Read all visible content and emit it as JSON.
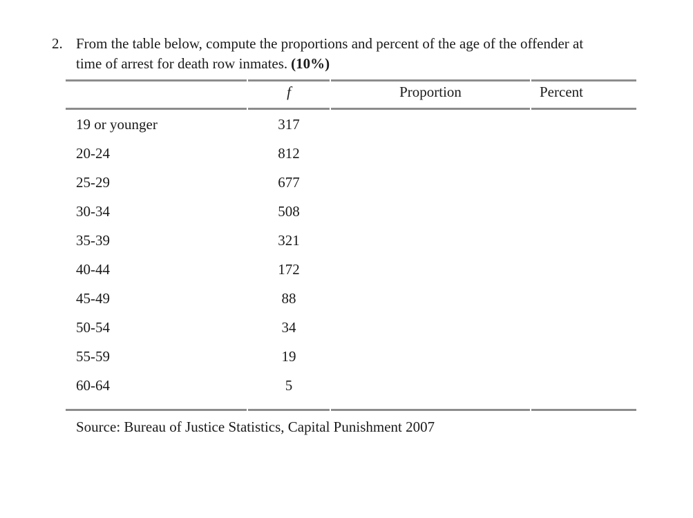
{
  "colors": {
    "background": "#ffffff",
    "text": "#1a1a1a",
    "rule": "#8c8c8c"
  },
  "question": {
    "number": "2.",
    "line1": "From the table below, compute the proportions and percent of the age of the offender at",
    "line2": "time of arrest for death row inmates.",
    "points": "(10%)"
  },
  "table": {
    "headers": {
      "age": "",
      "f": "f",
      "proportion": "Proportion",
      "percent": "Percent"
    },
    "rows": [
      {
        "age": "19 or younger",
        "f": "317",
        "proportion": "",
        "percent": ""
      },
      {
        "age": "20-24",
        "f": "812",
        "proportion": "",
        "percent": ""
      },
      {
        "age": "25-29",
        "f": "677",
        "proportion": "",
        "percent": ""
      },
      {
        "age": "30-34",
        "f": "508",
        "proportion": "",
        "percent": ""
      },
      {
        "age": "35-39",
        "f": "321",
        "proportion": "",
        "percent": ""
      },
      {
        "age": "40-44",
        "f": "172",
        "proportion": "",
        "percent": ""
      },
      {
        "age": "45-49",
        "f": "88",
        "proportion": "",
        "percent": ""
      },
      {
        "age": "50-54",
        "f": "34",
        "proportion": "",
        "percent": ""
      },
      {
        "age": "55-59",
        "f": "19",
        "proportion": "",
        "percent": ""
      },
      {
        "age": "60-64",
        "f": "5",
        "proportion": "",
        "percent": ""
      }
    ]
  },
  "source": "Source: Bureau of Justice Statistics, Capital Punishment 2007"
}
